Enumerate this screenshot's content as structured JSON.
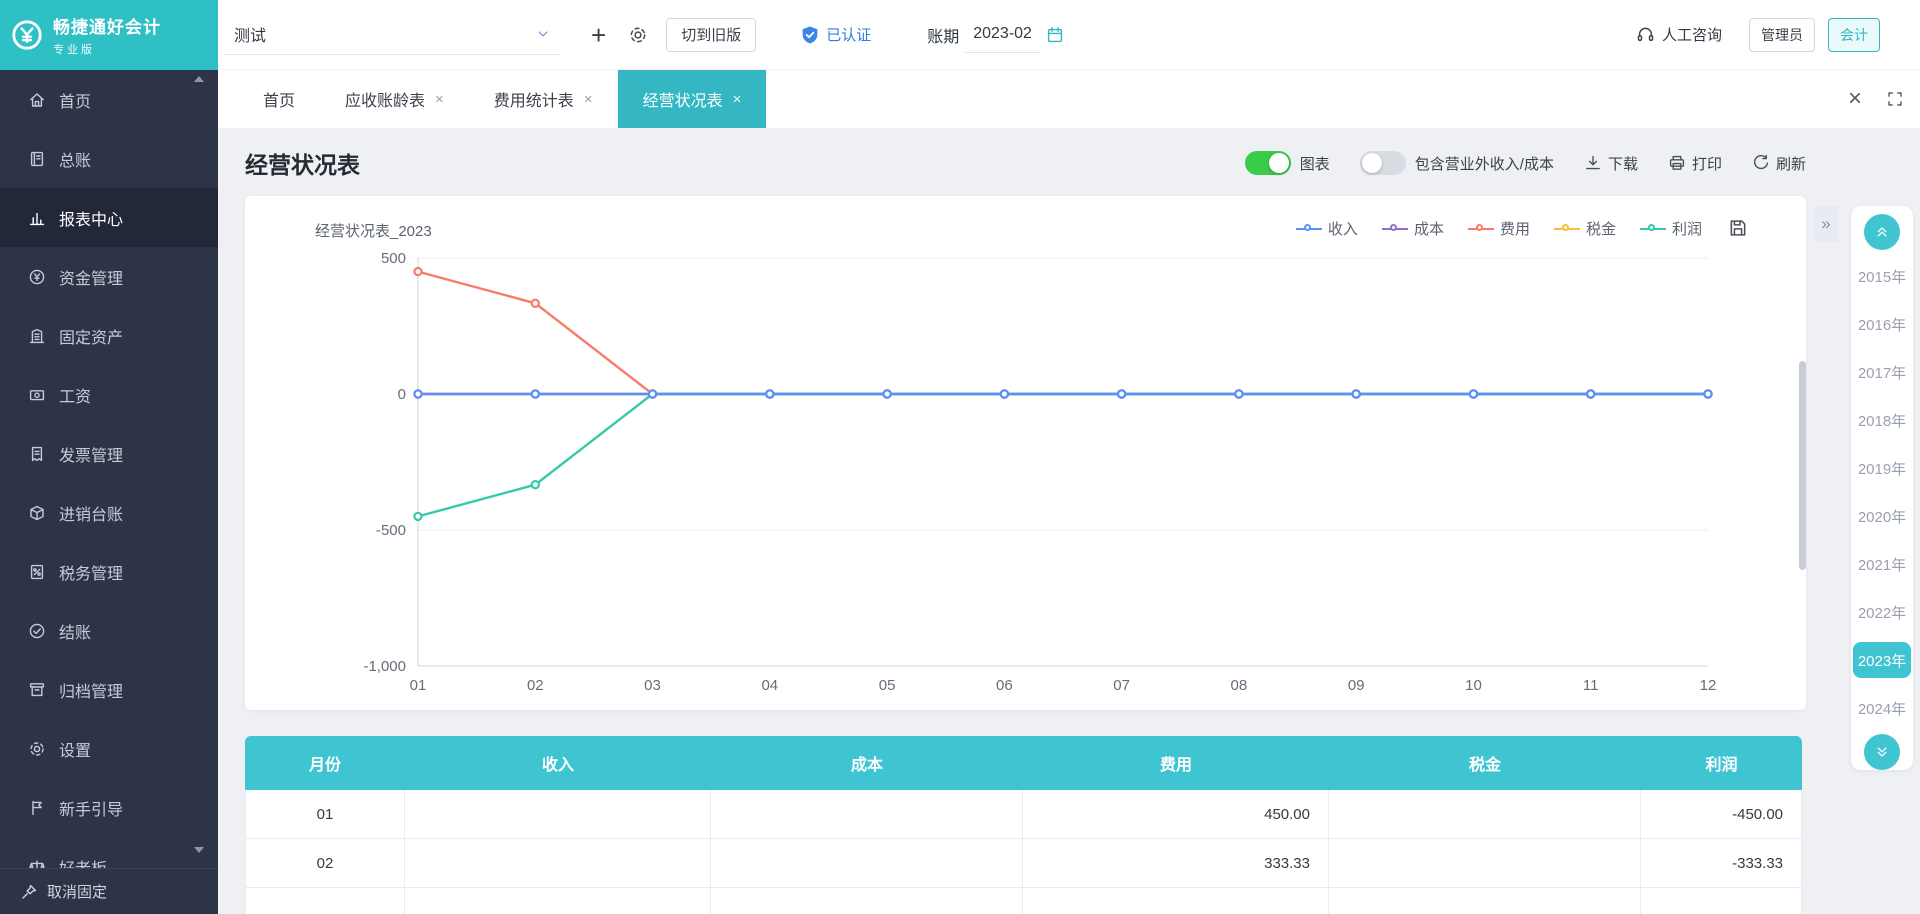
{
  "app": {
    "logo_title": "畅捷通好会计",
    "logo_subtitle": "专业版"
  },
  "colors": {
    "accent": "#35b7c3",
    "header_teal": "#3fc5d2",
    "sidebar_bg": "#2e3447",
    "sidebar_active": "#232838",
    "logo_bg": "#2fc0c6",
    "toggle_on": "#3bcb4a",
    "certified_blue": "#2f7de0",
    "page_bg": "#eef0f4"
  },
  "sidebar": {
    "items": [
      {
        "label": "首页",
        "icon": "home-icon",
        "active": false
      },
      {
        "label": "总账",
        "icon": "ledger-icon",
        "active": false
      },
      {
        "label": "报表中心",
        "icon": "report-icon",
        "active": true
      },
      {
        "label": "资金管理",
        "icon": "fund-icon",
        "active": false
      },
      {
        "label": "固定资产",
        "icon": "asset-icon",
        "active": false
      },
      {
        "label": "工资",
        "icon": "payroll-icon",
        "active": false
      },
      {
        "label": "发票管理",
        "icon": "invoice-icon",
        "active": false
      },
      {
        "label": "进销台账",
        "icon": "inventory-icon",
        "active": false
      },
      {
        "label": "税务管理",
        "icon": "tax-icon",
        "active": false
      },
      {
        "label": "结账",
        "icon": "closing-icon",
        "active": false
      },
      {
        "label": "归档管理",
        "icon": "archive-icon",
        "active": false
      },
      {
        "label": "设置",
        "icon": "settings-icon",
        "active": false
      },
      {
        "label": "新手引导",
        "icon": "guide-icon",
        "active": false
      },
      {
        "label": "好老板",
        "icon": "scale-icon",
        "active": false
      }
    ],
    "unpin_label": "取消固定"
  },
  "topbar": {
    "company": "测试",
    "add_glyph": "+",
    "switch_old_label": "切到旧版",
    "certified_label": "已认证",
    "period_label": "账期",
    "period_value": "2023-02",
    "support_label": "人工咨询",
    "admin_label": "管理员",
    "role_label": "会计"
  },
  "tabs": {
    "close_glyph": "×",
    "items": [
      {
        "label": "首页",
        "closable": false,
        "active": false
      },
      {
        "label": "应收账龄表",
        "closable": true,
        "active": false
      },
      {
        "label": "费用统计表",
        "closable": true,
        "active": false
      },
      {
        "label": "经营状况表",
        "closable": true,
        "active": true
      }
    ]
  },
  "toolbar": {
    "page_title": "经营状况表",
    "chart_toggle_label": "图表",
    "chart_toggle_on": true,
    "include_toggle_label": "包含营业外收入/成本",
    "include_toggle_on": false,
    "download_label": "下载",
    "print_label": "打印",
    "refresh_label": "刷新"
  },
  "chart_data": {
    "type": "line",
    "title": "经营状况表_2023",
    "x": [
      "01",
      "02",
      "03",
      "04",
      "05",
      "06",
      "07",
      "08",
      "09",
      "10",
      "11",
      "12"
    ],
    "series": [
      {
        "name": "收入",
        "color": "#5b8ff9",
        "values": [
          0,
          0,
          0,
          0,
          0,
          0,
          0,
          0,
          0,
          0,
          0,
          0
        ]
      },
      {
        "name": "成本",
        "color": "#9270ca",
        "values": [
          0,
          0,
          0,
          0,
          0,
          0,
          0,
          0,
          0,
          0,
          0,
          0
        ]
      },
      {
        "name": "费用",
        "color": "#fa7a68",
        "values": [
          450,
          333.33,
          0,
          0,
          0,
          0,
          0,
          0,
          0,
          0,
          0,
          0
        ]
      },
      {
        "name": "税金",
        "color": "#f6c03c",
        "values": [
          0,
          0,
          0,
          0,
          0,
          0,
          0,
          0,
          0,
          0,
          0,
          0
        ]
      },
      {
        "name": "利润",
        "color": "#33c9a6",
        "values": [
          -450,
          -333.33,
          0,
          0,
          0,
          0,
          0,
          0,
          0,
          0,
          0,
          0
        ]
      }
    ],
    "ylim": [
      -1000,
      500
    ],
    "yticks": [
      500,
      0,
      -500,
      -1000
    ],
    "ytick_labels": [
      "500",
      "0",
      "-500",
      "-1,000"
    ],
    "legend_position": "top-right",
    "grid": true
  },
  "year_panel": {
    "collapse_glyph": "»",
    "years": [
      "2015年",
      "2016年",
      "2017年",
      "2018年",
      "2019年",
      "2020年",
      "2021年",
      "2022年",
      "2023年",
      "2024年"
    ],
    "selected": "2023年"
  },
  "table": {
    "columns": [
      "月份",
      "收入",
      "成本",
      "费用",
      "税金",
      "利润"
    ],
    "rows": [
      [
        "01",
        "",
        "",
        "450.00",
        "",
        "-450.00"
      ],
      [
        "02",
        "",
        "",
        "333.33",
        "",
        "-333.33"
      ]
    ]
  }
}
